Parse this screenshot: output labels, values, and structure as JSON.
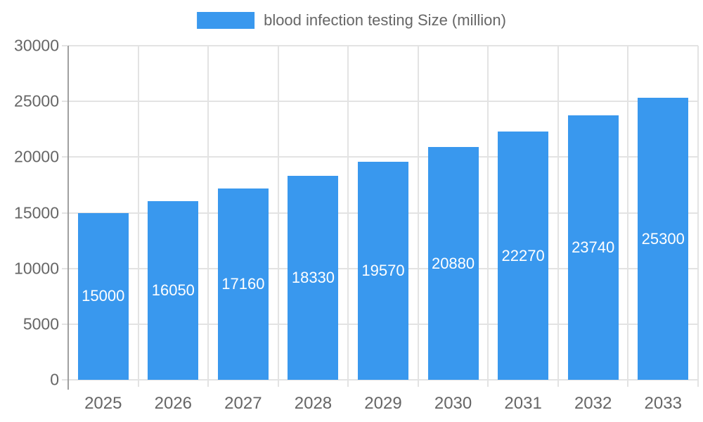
{
  "chart_data": {
    "type": "bar",
    "title": "",
    "legend": "blood infection testing Size (million)",
    "legend_position": "top",
    "categories": [
      "2025",
      "2026",
      "2027",
      "2028",
      "2029",
      "2030",
      "2031",
      "2032",
      "2033"
    ],
    "values": [
      15000,
      16050,
      17160,
      18330,
      19570,
      20880,
      22270,
      23740,
      25300
    ],
    "xlabel": "",
    "ylabel": "",
    "ylim": [
      0,
      30000
    ],
    "yticks": [
      0,
      5000,
      10000,
      15000,
      20000,
      25000,
      30000
    ],
    "grid": true,
    "bar_labels_inside": true,
    "colors": {
      "bar": "#3998EE",
      "grid": "#E3E3E3",
      "axis_line": "#A0A0A0",
      "tick_text": "#666666",
      "bar_label_text": "#FFFFFF",
      "background": "#FFFFFF"
    }
  }
}
